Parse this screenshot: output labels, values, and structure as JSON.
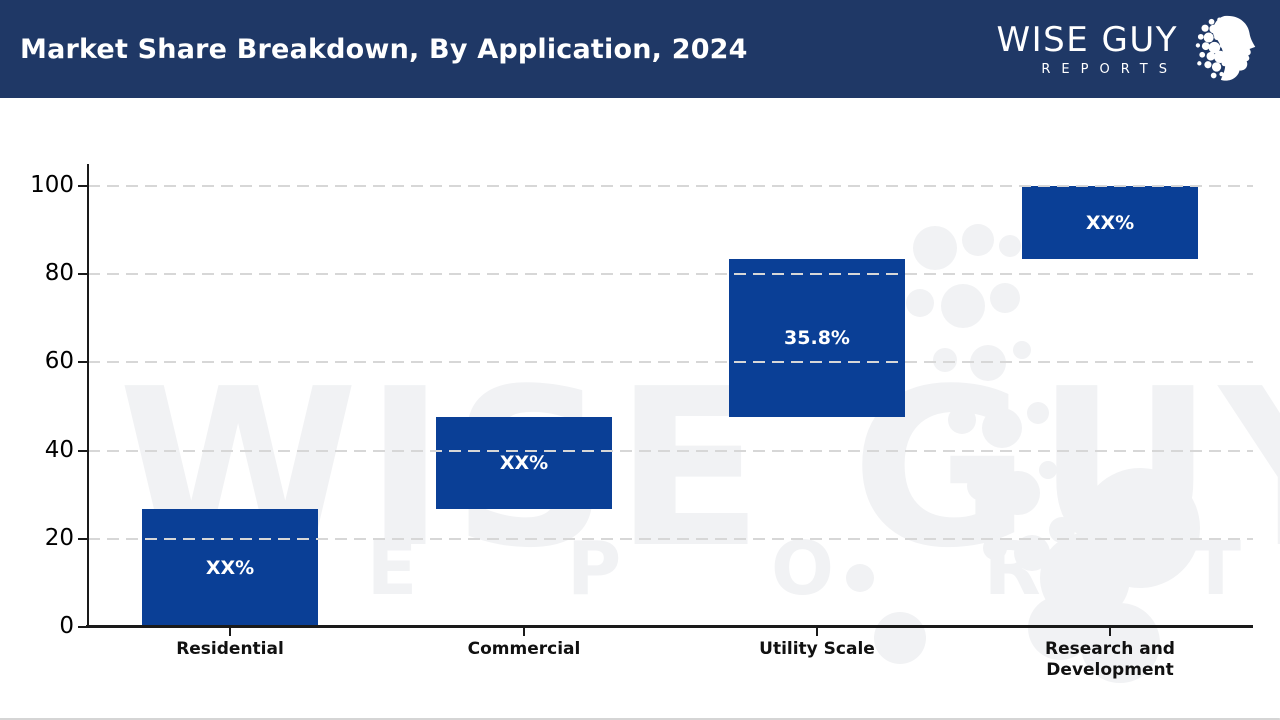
{
  "header": {
    "title": "Market Share Breakdown, By Application, 2024",
    "background_color": "#1f3866",
    "text_color": "#ffffff",
    "logo": {
      "line1": "WISE GUY",
      "line2": "REPORTS"
    }
  },
  "watermark": {
    "line1": "WISE GUY",
    "line2": "R E P O R T S"
  },
  "chart_data": {
    "type": "bar",
    "variant": "waterfall-floating-bars",
    "title": "Market Share Breakdown, By Application, 2024",
    "categories": [
      "Residential",
      "Commercial",
      "Utility Scale",
      "Research and Development"
    ],
    "bars": [
      {
        "category": "Residential",
        "start": 0,
        "end": 26.8,
        "segment_value": 26.8,
        "label": "XX%"
      },
      {
        "category": "Commercial",
        "start": 26.8,
        "end": 47.6,
        "segment_value": 20.8,
        "label": "XX%"
      },
      {
        "category": "Utility Scale",
        "start": 47.6,
        "end": 83.4,
        "segment_value": 35.8,
        "label": "35.8%"
      },
      {
        "category": "Research and Development",
        "start": 83.4,
        "end": 100,
        "segment_value": 16.6,
        "label": "XX%"
      }
    ],
    "ylim": [
      0,
      100
    ],
    "yticks": [
      0,
      20,
      40,
      60,
      80,
      100
    ],
    "xlabel": "",
    "ylabel": "",
    "grid": "horizontal dashed, drawn over bars",
    "legend": "none",
    "bar_color": "#0a3f96",
    "bar_label_color": "#ffffff"
  }
}
